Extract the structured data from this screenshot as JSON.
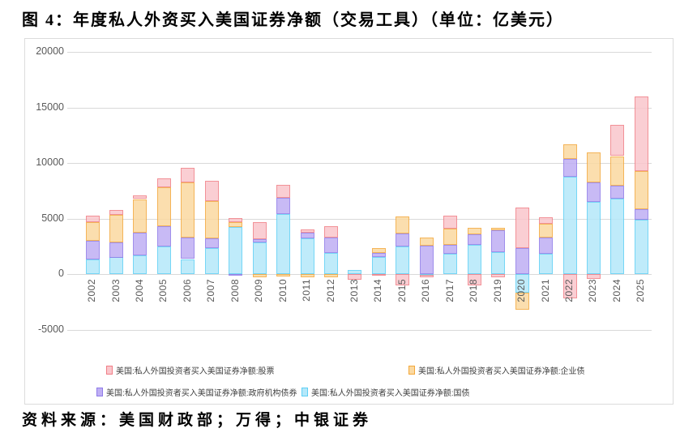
{
  "title": "图 4：年度私人外资买入美国证券净额（交易工具）（单位：亿美元）",
  "source": "资料来源：美国财政部；万得；中银证券",
  "chart_data": {
    "type": "bar",
    "stacked": true,
    "unit": "亿美元",
    "title": "年度私人外资买入美国证券净额（交易工具）",
    "categories": [
      "2002",
      "2003",
      "2004",
      "2005",
      "2006",
      "2007",
      "2008",
      "2009",
      "2010",
      "2011",
      "2012",
      "2013",
      "2014",
      "2015",
      "2016",
      "2017",
      "2018",
      "2019",
      "2020",
      "2021",
      "2022",
      "2023",
      "2024",
      "2025"
    ],
    "y_ticks": [
      20000,
      15000,
      10000,
      5000,
      0,
      -5000
    ],
    "ylim": [
      -5000,
      20000
    ],
    "grid": true,
    "legend_position": "bottom",
    "highlighted_category": "2020",
    "stack_order_bottom_to_top": [
      "国债",
      "政府机构债券",
      "企业债",
      "股票"
    ],
    "series": [
      {
        "name": "美国:私人外国投资者买入美国证券净额:股票",
        "line_color": "#F07E86",
        "fill_color": "#FAC6CC",
        "values": [
          600,
          450,
          300,
          800,
          1300,
          1800,
          400,
          1550,
          1150,
          300,
          1000,
          -500,
          -150,
          -1000,
          -200,
          1200,
          -1000,
          -300,
          3650,
          550,
          -2200,
          -400,
          2800,
          6700
        ]
      },
      {
        "name": "美国:私人外国投资者买入美国证券净额:企业债",
        "line_color": "#F3A83B",
        "fill_color": "#FBD9A1",
        "values": [
          1650,
          2500,
          3000,
          3550,
          4950,
          3400,
          400,
          -300,
          -200,
          -300,
          -300,
          0,
          420,
          1500,
          720,
          1400,
          600,
          250,
          -1550,
          1250,
          1330,
          2700,
          2660,
          3400
        ]
      },
      {
        "name": "美国:私人外国投资者买入美国证券净额:政府机构债券",
        "line_color": "#8F7BE8",
        "fill_color": "#BFAFF4",
        "values": [
          1700,
          1350,
          2050,
          1850,
          1950,
          850,
          -150,
          300,
          1450,
          500,
          1400,
          0,
          380,
          1180,
          2560,
          800,
          950,
          1950,
          2350,
          1500,
          1570,
          1750,
          1200,
          970
        ]
      },
      {
        "name": "美国:私人外国投资者买入美国证券净额:国债",
        "line_color": "#5ECFF5",
        "fill_color": "#B5E8FA",
        "values": [
          1300,
          1500,
          1700,
          2450,
          1350,
          2350,
          4250,
          2850,
          5400,
          3200,
          1900,
          400,
          1550,
          2470,
          -100,
          1860,
          2600,
          2000,
          -1700,
          1800,
          8770,
          6470,
          6760,
          4900
        ]
      }
    ]
  }
}
